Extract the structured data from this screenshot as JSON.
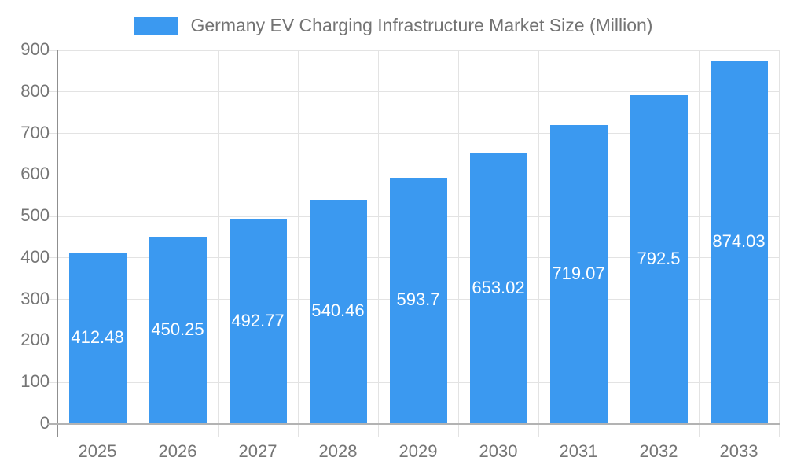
{
  "chart_data": {
    "type": "bar",
    "title": "Germany EV Charging Infrastructure Market Size (Million)",
    "categories": [
      "2025",
      "2026",
      "2027",
      "2028",
      "2029",
      "2030",
      "2031",
      "2032",
      "2033"
    ],
    "values": [
      412.48,
      450.25,
      492.77,
      540.46,
      593.7,
      653.02,
      719.07,
      792.5,
      874.03
    ],
    "value_labels": [
      "412.48",
      "450.25",
      "492.77",
      "540.46",
      "593.7",
      "653.02",
      "719.07",
      "792.5",
      "874.03"
    ],
    "xlabel": "",
    "ylabel": "",
    "ylim": [
      0,
      900
    ],
    "yticks": [
      0,
      100,
      200,
      300,
      400,
      500,
      600,
      700,
      800,
      900
    ],
    "grid": true,
    "legend_position": "top",
    "colors": {
      "bar": "#3b99f0",
      "value_label": "#ffffff",
      "axis_text": "#757575",
      "legend_text": "#737373",
      "gridline": "#e3e3e3",
      "y_axis_line": "#8f8f8f",
      "x_axis_line": "#b3b3b3",
      "background": "#ffffff"
    }
  }
}
